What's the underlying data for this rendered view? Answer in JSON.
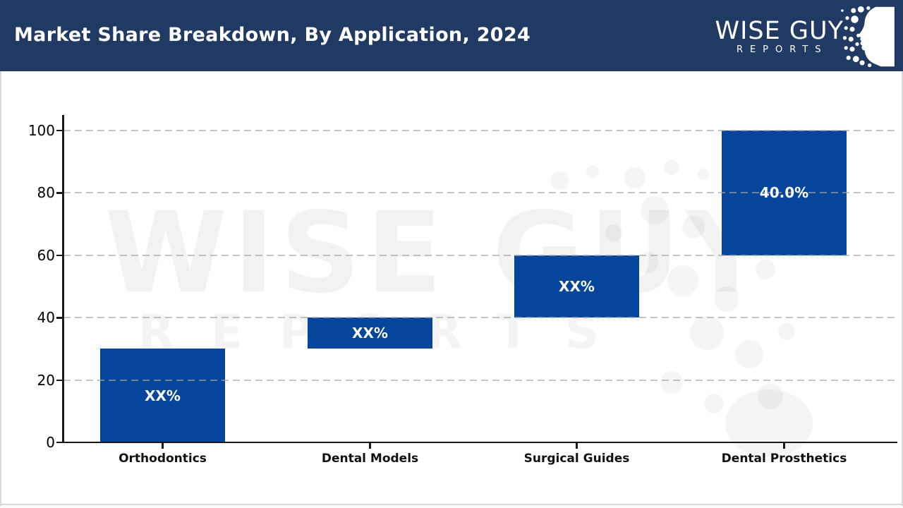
{
  "header": {
    "title": "Market Share Breakdown, By Application, 2024",
    "bg_color": "#203A64",
    "logo": {
      "line1": "WISE GUY",
      "line2": "REPORTS"
    }
  },
  "watermark": {
    "line1": "WISE GUY",
    "line2": "REPORTS"
  },
  "chart_data": {
    "type": "bar",
    "variant": "floating-waterfall-market-share",
    "title": "Market Share Breakdown, By Application, 2024",
    "categories": [
      "Orthodontics",
      "Dental Models",
      "Surgical Guides",
      "Dental Prosthetics"
    ],
    "segments": [
      {
        "category": "Orthodontics",
        "start": 0,
        "end": 30,
        "label": "XX%"
      },
      {
        "category": "Dental Models",
        "start": 30,
        "end": 40,
        "label": "XX%"
      },
      {
        "category": "Surgical Guides",
        "start": 40,
        "end": 60,
        "label": "XX%"
      },
      {
        "category": "Dental Prosthetics",
        "start": 60,
        "end": 100,
        "label": "40.0%"
      }
    ],
    "implied_share_pct": [
      30,
      10,
      20,
      40
    ],
    "ylim": [
      0,
      100
    ],
    "yticks": [
      0,
      20,
      40,
      60,
      80,
      100
    ],
    "xlabel": "",
    "ylabel": "",
    "grid": "horizontal-dashed",
    "legend_position": "none",
    "bar_color": "#05459B",
    "bar_label_color": "#ffffff"
  }
}
